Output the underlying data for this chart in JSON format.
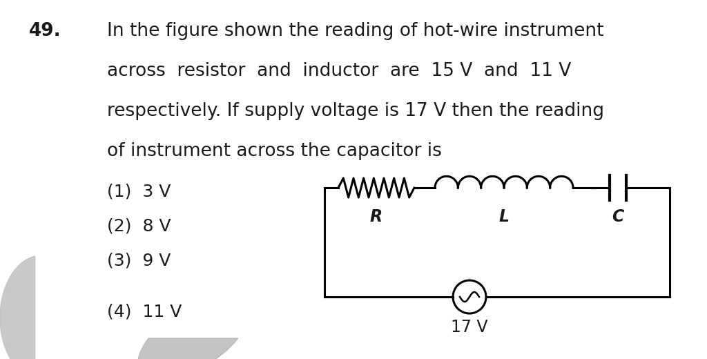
{
  "background_color": "#ffffff",
  "question_number": "49.",
  "question_text_line1": "In the figure shown the reading of hot-wire instrument",
  "question_text_line2": "across  resistor  and  inductor  are  15 V  and  11 V",
  "question_text_line3": "respectively. If supply voltage is 17 V then the reading",
  "question_text_line4": "of instrument across the capacitor is",
  "options": [
    "(1)  3 V",
    "(2)  8 V",
    "(3)  9 V",
    "(4)  11 V"
  ],
  "circuit_label_R": "R",
  "circuit_label_L": "L",
  "circuit_label_C": "C",
  "circuit_voltage": "17 V",
  "text_color": "#1a1a1a",
  "font_size_question": 19,
  "font_size_options": 18,
  "font_size_labels": 17,
  "font_size_voltage": 17,
  "line_width": 2.2
}
